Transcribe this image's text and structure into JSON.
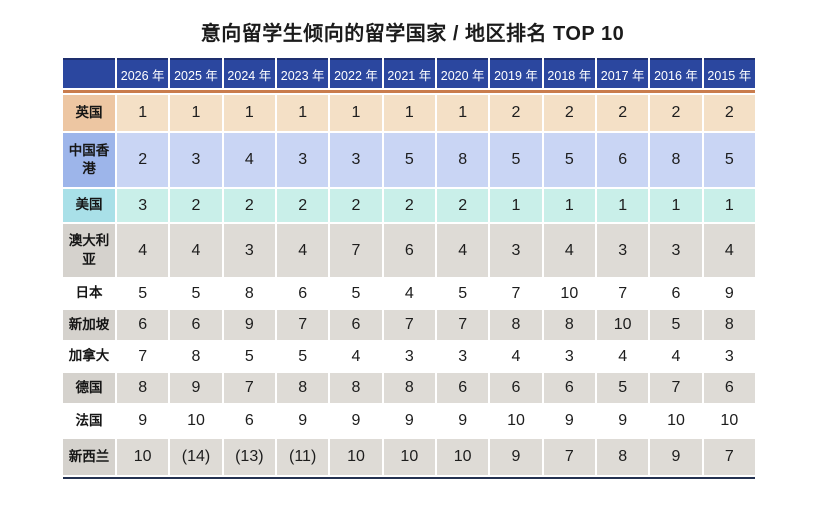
{
  "title": "意向留学生倾向的留学国家 / 地区排名 TOP 10",
  "chart_data": {
    "type": "table",
    "title": "意向留学生倾向的留学国家 / 地区排名 TOP 10",
    "columns": [
      "2026 年",
      "2025 年",
      "2024 年",
      "2023 年",
      "2022 年",
      "2021 年",
      "2020 年",
      "2019 年",
      "2018 年",
      "2017 年",
      "2016 年",
      "2015 年"
    ],
    "rows": [
      {
        "name": "英国",
        "values": [
          "1",
          "1",
          "1",
          "1",
          "1",
          "1",
          "1",
          "2",
          "2",
          "2",
          "2",
          "2"
        ]
      },
      {
        "name": "中国香港",
        "values": [
          "2",
          "3",
          "4",
          "3",
          "3",
          "5",
          "8",
          "5",
          "5",
          "6",
          "8",
          "5"
        ]
      },
      {
        "name": "美国",
        "values": [
          "3",
          "2",
          "2",
          "2",
          "2",
          "2",
          "2",
          "1",
          "1",
          "1",
          "1",
          "1"
        ]
      },
      {
        "name": "澳大利亚",
        "values": [
          "4",
          "4",
          "3",
          "4",
          "7",
          "6",
          "4",
          "3",
          "4",
          "3",
          "3",
          "4"
        ]
      },
      {
        "name": "日本",
        "values": [
          "5",
          "5",
          "8",
          "6",
          "5",
          "4",
          "5",
          "7",
          "10",
          "7",
          "6",
          "9"
        ]
      },
      {
        "name": "新加坡",
        "values": [
          "6",
          "6",
          "9",
          "7",
          "6",
          "7",
          "7",
          "8",
          "8",
          "10",
          "5",
          "8"
        ]
      },
      {
        "name": "加拿大",
        "values": [
          "7",
          "8",
          "5",
          "5",
          "4",
          "3",
          "3",
          "4",
          "3",
          "4",
          "4",
          "3"
        ]
      },
      {
        "name": "德国",
        "values": [
          "8",
          "9",
          "7",
          "8",
          "8",
          "8",
          "6",
          "6",
          "6",
          "5",
          "7",
          "6"
        ]
      },
      {
        "name": "法国",
        "values": [
          "9",
          "10",
          "6",
          "9",
          "9",
          "9",
          "9",
          "10",
          "9",
          "9",
          "10",
          "10"
        ]
      },
      {
        "name": "新西兰",
        "values": [
          "10",
          "(14)",
          "(13)",
          "(11)",
          "10",
          "10",
          "10",
          "9",
          "7",
          "8",
          "9",
          "7"
        ]
      }
    ]
  },
  "row_themes": [
    "uk",
    "hk",
    "us",
    "gray",
    "white",
    "gray",
    "white",
    "gray",
    "white",
    "gray"
  ],
  "colors": {
    "header_bg": "#2b479f",
    "header_edge": "#1e2f6e",
    "header_text": "#ffffff",
    "accent": "#c97c4c",
    "bottom_line": "#233150",
    "uk_label": "#edc6a2",
    "uk_cell": "#f4e0c6",
    "hk_label": "#9db5ea",
    "hk_cell": "#c9d5f4",
    "us_label": "#a9e0e8",
    "us_cell": "#c9efe9",
    "gray_label": "#d5d2cd",
    "gray_cell": "#dedbd6",
    "white_cell": "#ffffff"
  }
}
